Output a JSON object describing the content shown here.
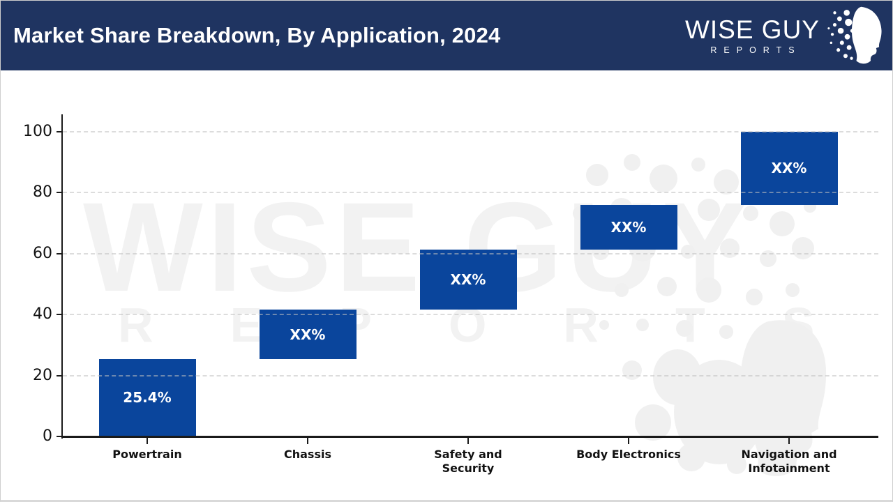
{
  "header": {
    "title": "Market Share Breakdown, By Application, 2024",
    "bg_color": "#1f3461",
    "logo": {
      "line1": "WISE GUY",
      "line2": "REPORTS"
    }
  },
  "watermark": {
    "line1": "WISE GUY",
    "line2": "REPORTS"
  },
  "chart_data": {
    "type": "bar",
    "subtype": "waterfall",
    "title": "Market Share Breakdown, By Application, 2024",
    "categories": [
      "Powertrain",
      "Chassis",
      "Safety and Security",
      "Body Electronics",
      "Navigation and Infotainment"
    ],
    "category_lines": [
      [
        "Powertrain"
      ],
      [
        "Chassis"
      ],
      [
        "Safety and",
        "Security"
      ],
      [
        "Body Electronics"
      ],
      [
        "Navigation and",
        "Infotainment"
      ]
    ],
    "segments": [
      {
        "category": "Powertrain",
        "start": 0,
        "end": 25.4,
        "label": "25.4%"
      },
      {
        "category": "Chassis",
        "start": 25.4,
        "end": 41.6,
        "label": "XX%"
      },
      {
        "category": "Safety and Security",
        "start": 41.6,
        "end": 61.3,
        "label": "XX%"
      },
      {
        "category": "Body Electronics",
        "start": 61.3,
        "end": 76.0,
        "label": "XX%"
      },
      {
        "category": "Navigation and Infotainment",
        "start": 76.0,
        "end": 100.0,
        "label": "XX%"
      }
    ],
    "yticks": [
      0,
      20,
      40,
      60,
      80,
      100
    ],
    "ylim": [
      0,
      105
    ],
    "xlabel": "",
    "ylabel": "",
    "grid": "horizontal-dashed",
    "legend": "none",
    "bar_color": "#0a459c",
    "bar_label_color": "#ffffff",
    "gridline_color": "#d9d9d9",
    "axis_color": "#1a1a1a"
  }
}
